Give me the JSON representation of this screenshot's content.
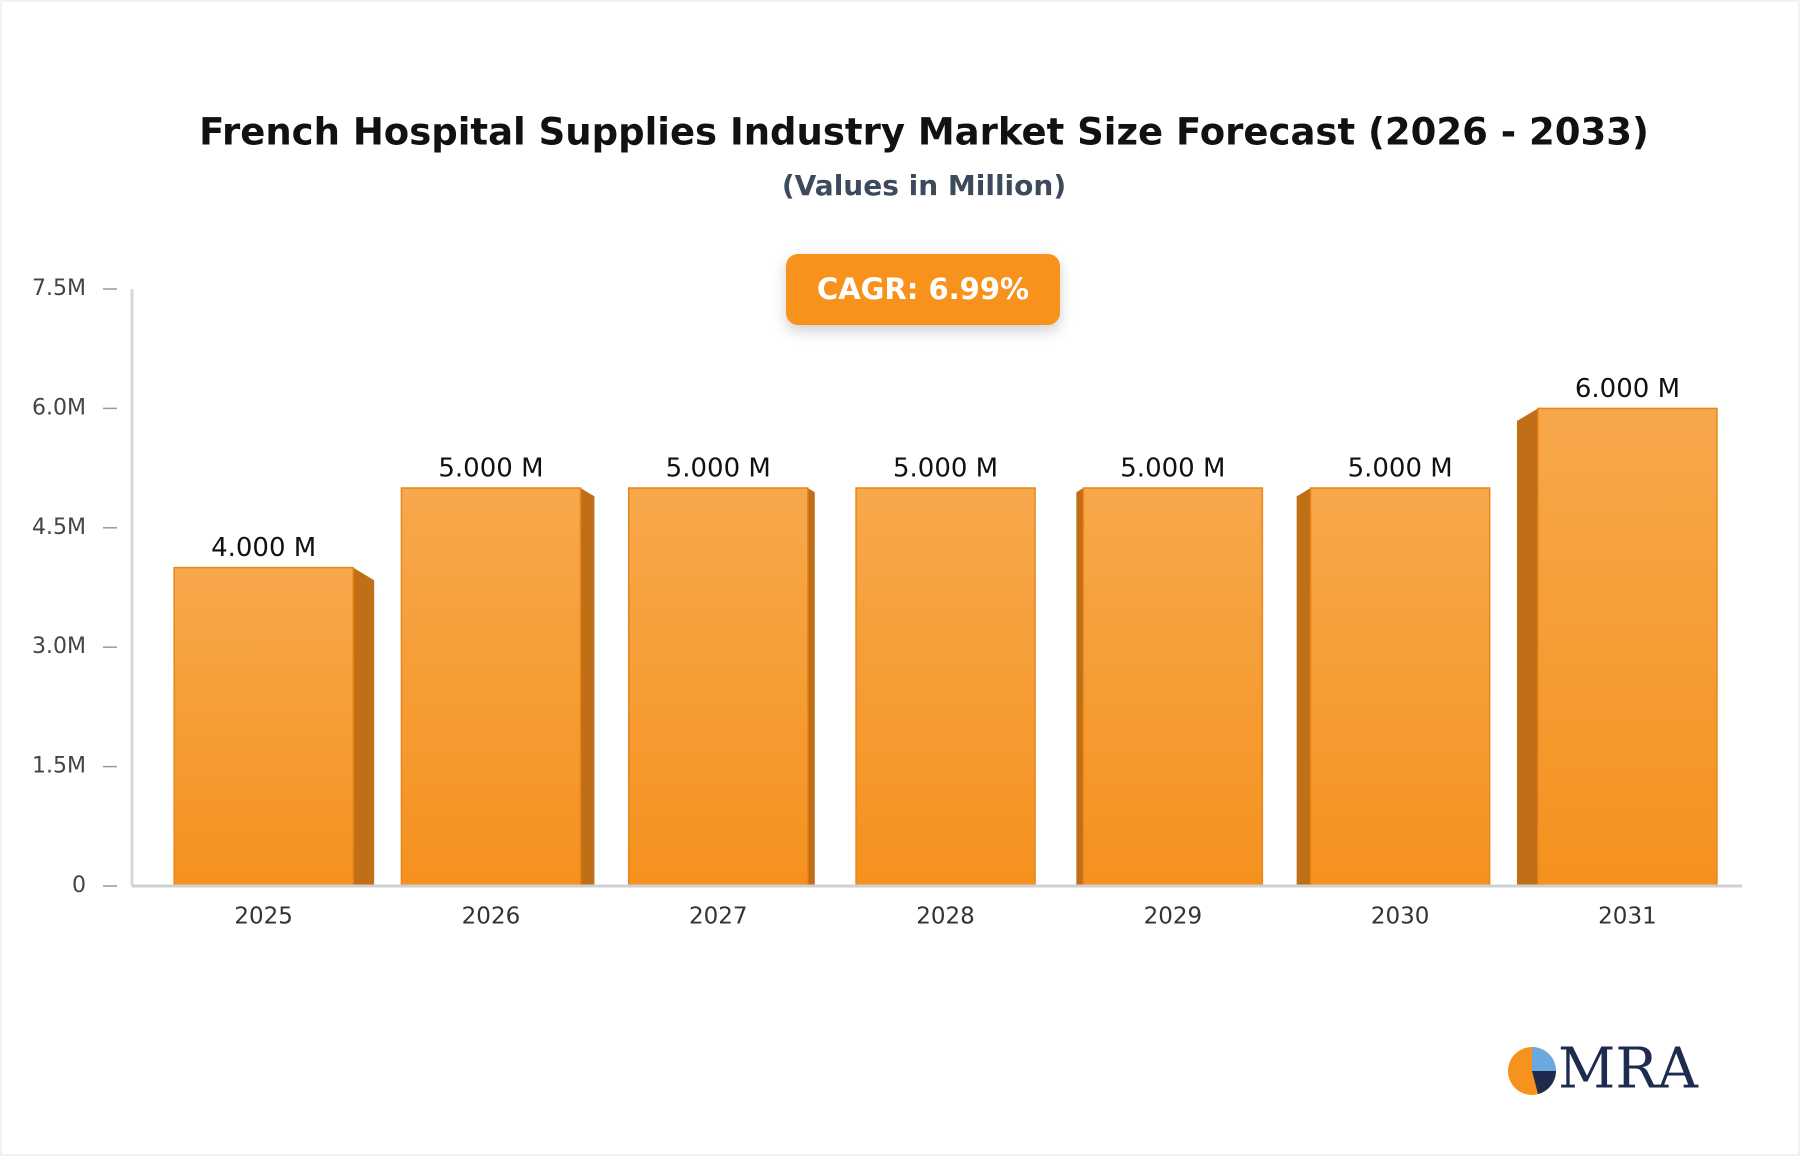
{
  "chart_data": {
    "type": "bar",
    "title": "French Hospital Supplies Industry Market Size Forecast (2026 - 2033)",
    "subtitle": "(Values in Million)",
    "annotation": "CAGR: 6.99%",
    "categories": [
      "2025",
      "2026",
      "2027",
      "2028",
      "2029",
      "2030",
      "2031"
    ],
    "values": [
      4,
      5,
      5,
      5,
      5,
      5,
      6
    ],
    "value_labels": [
      "4.000 M",
      "5.000 M",
      "5.000 M",
      "5.000 M",
      "5.000 M",
      "5.000 M",
      "6.000 M"
    ],
    "color": "#f7a040",
    "ylim": [
      0,
      7.5
    ],
    "yticks": [
      0,
      {
        "value": 1.5,
        "label": "1.5M"
      },
      {
        "value": 3,
        "label": "3.0M"
      },
      {
        "value": 4.5,
        "label": "4.5M"
      },
      {
        "value": 6,
        "label": "6.0M"
      },
      {
        "value": 7.5,
        "label": "7.5M"
      }
    ],
    "grid": false
  },
  "logo": "MRA"
}
